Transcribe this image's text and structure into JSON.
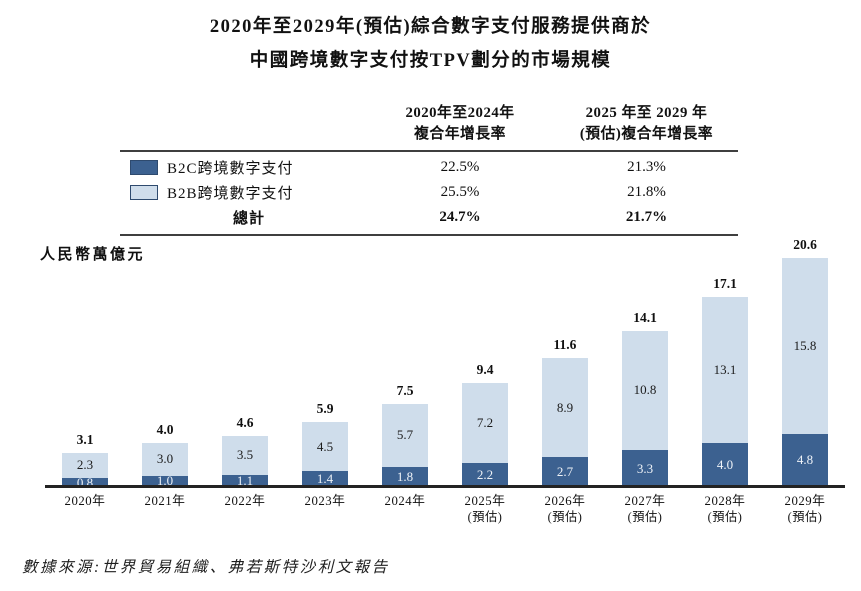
{
  "title": {
    "line1": "2020年至2029年(預估)綜合數字支付服務提供商於",
    "line2": "中國跨境數字支付按TPV劃分的市場規模"
  },
  "cagr_table": {
    "columns": [
      {
        "line1": "2020年至2024年",
        "line2": "複合年增長率"
      },
      {
        "line1": "2025 年至 2029 年",
        "line2": "(預估)複合年增長率"
      }
    ],
    "rows": [
      {
        "label": "B2C跨境數字支付",
        "swatch": "b2c",
        "col1": "22.5%",
        "col2": "21.3%"
      },
      {
        "label": "B2B跨境數字支付",
        "swatch": "b2b",
        "col1": "25.5%",
        "col2": "21.8%"
      },
      {
        "label": "總計",
        "swatch": null,
        "col1": "24.7%",
        "col2": "21.7%"
      }
    ]
  },
  "chart_data": {
    "type": "bar",
    "stacked": true,
    "title": "2020年至2029年(預估)綜合數字支付服務提供商於中國跨境數字支付按TPV劃分的市場規模",
    "ylabel": "人民幣萬億元",
    "xlabel": "",
    "ylim": [
      0,
      20.6
    ],
    "grid": false,
    "legend_position": "table-top-left",
    "categories": [
      {
        "label": "2020年",
        "sublabel": ""
      },
      {
        "label": "2021年",
        "sublabel": ""
      },
      {
        "label": "2022年",
        "sublabel": ""
      },
      {
        "label": "2023年",
        "sublabel": ""
      },
      {
        "label": "2024年",
        "sublabel": ""
      },
      {
        "label": "2025年",
        "sublabel": "(預估)"
      },
      {
        "label": "2026年",
        "sublabel": "(預估)"
      },
      {
        "label": "2027年",
        "sublabel": "(預估)"
      },
      {
        "label": "2028年",
        "sublabel": "(預估)"
      },
      {
        "label": "2029年",
        "sublabel": "(預估)"
      }
    ],
    "series": [
      {
        "name": "B2C跨境數字支付",
        "color": "#3c6190",
        "values": [
          0.8,
          1.0,
          1.1,
          1.4,
          1.8,
          2.2,
          2.7,
          3.3,
          4.0,
          4.8
        ]
      },
      {
        "name": "B2B跨境數字支付",
        "color": "#cfddeb",
        "values": [
          2.3,
          3.0,
          3.5,
          4.5,
          5.7,
          7.2,
          8.9,
          10.8,
          13.1,
          15.8
        ]
      }
    ],
    "totals": [
      3.1,
      4.0,
      4.6,
      5.9,
      7.5,
      9.4,
      11.6,
      14.1,
      17.1,
      20.6
    ]
  },
  "colors": {
    "b2c": "#3c6190",
    "b2b": "#cfddeb",
    "axis": "#232323"
  },
  "source": "數據來源:世界貿易組織、弗若斯特沙利文報告"
}
